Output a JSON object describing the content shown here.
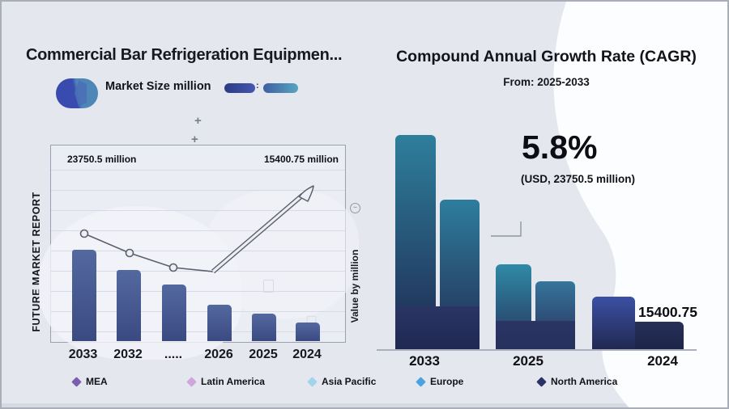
{
  "header": {
    "title": "Commercial Bar Refrigeration Equipmen...",
    "series_label": "Market Size million",
    "ratio_separator": ":",
    "decor_plus_1": "+",
    "decor_plus_2": "+"
  },
  "branding": {
    "side_text": "FUTURE MARKET REPORT"
  },
  "left_chart_labels": {
    "top_left_value": "23750.5 million",
    "top_right_value": "15400.75 million",
    "y_axis_label": "Value by million"
  },
  "right_panel": {
    "title": "Compound Annual Growth Rate (CAGR)",
    "subtitle": "From: 2025-2033",
    "cagr_value": "5.8%",
    "cagr_basis": "(USD, 23750.5 million)",
    "callout_value": "15400.75"
  },
  "legend": {
    "items": [
      {
        "label": "MEA",
        "color": "#7a5fae"
      },
      {
        "label": "Latin America",
        "color": "#cfa6db"
      },
      {
        "label": "Asia Pacific",
        "color": "#a3d3ea"
      },
      {
        "label": "Europe",
        "color": "#4aa2e0"
      },
      {
        "label": "North America",
        "color": "#2a3263"
      }
    ]
  },
  "colors": {
    "page_bg": "#e4e7ee",
    "panel_bg": "#ebedf4",
    "left_bar_top": "#5468a0",
    "left_bar_bottom": "#3a4a81"
  },
  "chart_data": [
    {
      "id": "market-size-trend",
      "type": "bar",
      "title": "Commercial Bar Refrigeration Equipmen...",
      "legend_entry": "Market Size million",
      "categories": [
        "2033",
        "2032",
        ".....",
        "2026",
        "2025",
        "2024"
      ],
      "values_pct_of_max": [
        100,
        78,
        62,
        40,
        30,
        20
      ],
      "annotations": {
        "top_left": "23750.5 million",
        "top_right": "15400.75 million",
        "value_2033_million": 23750.5,
        "value_2024_million": 15400.75
      },
      "ylabel": "Value by million",
      "side_label": "FUTURE MARKET REPORT",
      "grid": true,
      "trend_overlay": {
        "description": "declining line with 3 circle markers then rising hollow arrow",
        "marker_points_pct": [
          [
            11,
            44
          ],
          [
            26.5,
            54
          ],
          [
            41.5,
            61.5
          ]
        ],
        "arrow_from_pct": [
          55,
          64
        ],
        "arrow_to_pct": [
          88.5,
          20.5
        ]
      }
    },
    {
      "id": "cagr-bars",
      "type": "bar",
      "title": "Compound Annual Growth Rate (CAGR)",
      "subtitle": "From: 2025-2033",
      "cagr": "5.8%",
      "cagr_basis": "(USD, 23750.5 million)",
      "categories": [
        "2033",
        "2025",
        "2024"
      ],
      "series": [
        {
          "name": "primary",
          "values_pct_of_max": [
            100,
            40,
            25
          ]
        },
        {
          "name": "secondary",
          "values_pct_of_max": [
            70,
            32,
            13
          ]
        }
      ],
      "callout": {
        "value": "15400.75",
        "category": "2024"
      },
      "bar_gradients": [
        [
          [
            "#2e7f9c",
            "#1f2850"
          ],
          [
            "#2e7d9d",
            "#232b52"
          ]
        ],
        [
          [
            "#2f8aa6",
            "#27305c"
          ],
          [
            "#36759b",
            "#272f5a"
          ]
        ],
        [
          [
            "#3c50a4",
            "#202850"
          ],
          [
            "#273058",
            "#1c2448"
          ]
        ]
      ],
      "legend_position": "bottom",
      "grid": false
    }
  ]
}
